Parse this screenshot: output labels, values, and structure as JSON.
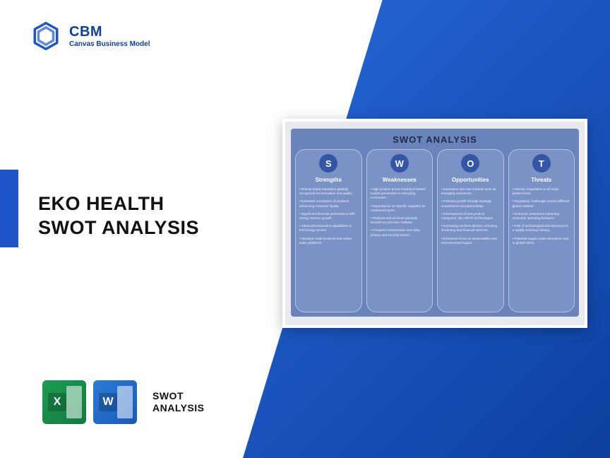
{
  "brand": {
    "abbr": "CBM",
    "name": "Canvas Business Model",
    "logo_color": "#1e56c9"
  },
  "accent_color": "#1e56c9",
  "title_line1": "EKO HEALTH",
  "title_line2": "SWOT ANALYSIS",
  "bottom": {
    "excel_letter": "X",
    "word_letter": "W",
    "label_line1": "SWOT",
    "label_line2": "ANALYSIS"
  },
  "swot": {
    "title": "SWOT ANALYSIS",
    "bg_inner": "#6b83bb",
    "col_bg": "#7b92c6",
    "badge_bg": "#3556a6",
    "columns": [
      {
        "letter": "S",
        "heading": "Strengths",
        "items": [
          "Robust brand reputation globally recognized for innovation and quality.",
          "Extensive ecosystem of products enhancing customer loyalty.",
          "Significant financial performance with strong revenue growth.",
          "Advanced innovation capabilities in technology sectors.",
          "Strategic retail locations and online sales platforms."
        ]
      },
      {
        "letter": "W",
        "heading": "Weaknesses",
        "items": [
          "High product prices leading to limited market penetration in emerging economies.",
          "Dependence on specific suppliers for component parts.",
          "Products and services primarily focused on premium markets.",
          "Frequent controversies over data privacy and security issues."
        ]
      },
      {
        "letter": "O",
        "heading": "Opportunities",
        "items": [
          "Expansion into new markets such as emerging economies.",
          "Potential growth through strategic acquisitions and partnerships.",
          "Development of new product categories, like AR/VR technologies.",
          "Increasing services division, including streaming and financial services.",
          "Enhanced focus on sustainability and environmental impact."
        ]
      },
      {
        "letter": "T",
        "heading": "Threats",
        "items": [
          "Intense competition in all major product lines.",
          "Regulatory challenges across different global markets.",
          "Economic downturns impacting consumer spending behavior.",
          "Risk of technological obsolescence in a rapidly evolving industry.",
          "Potential supply chain disruptions due to global crises."
        ]
      }
    ]
  }
}
